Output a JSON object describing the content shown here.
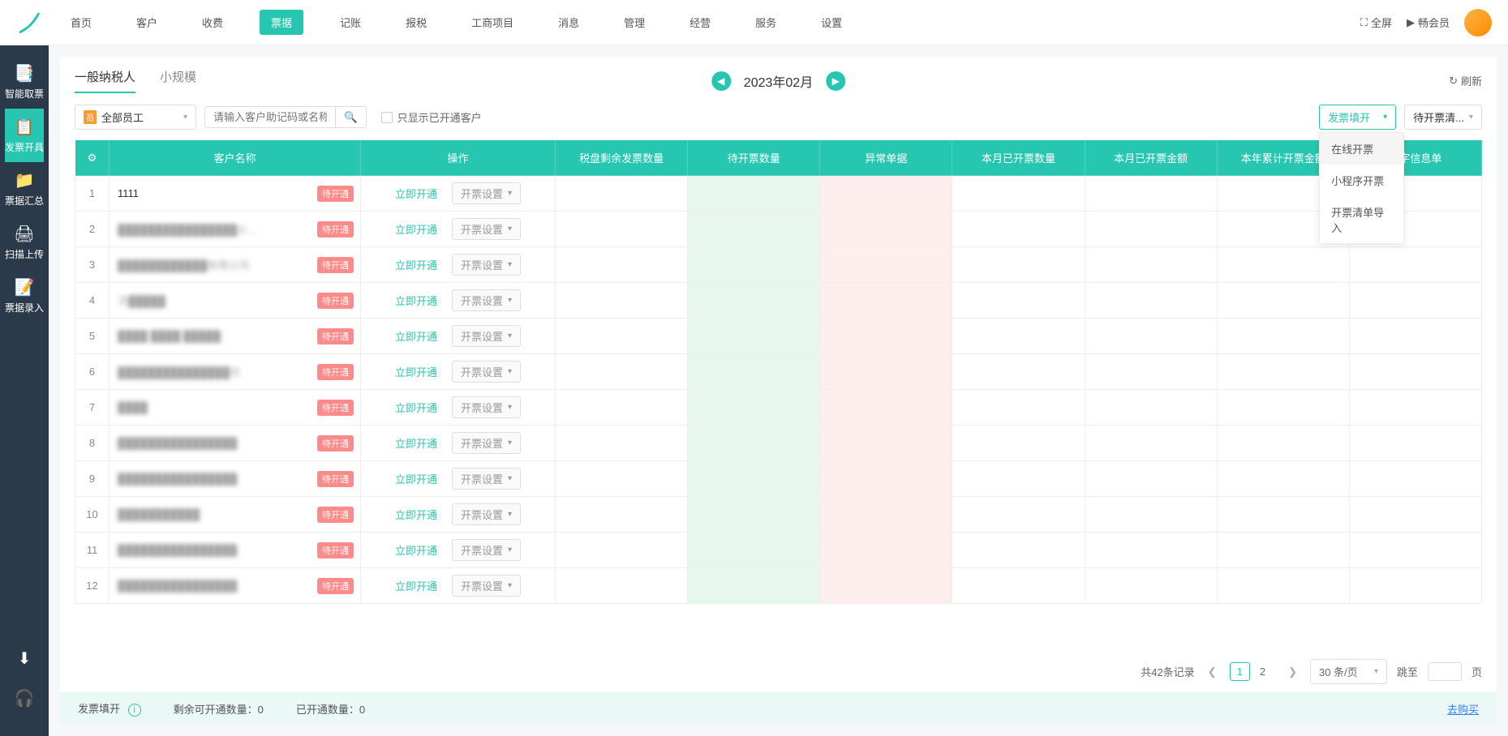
{
  "topNav": {
    "items": [
      "首页",
      "客户",
      "收费",
      "票据",
      "记账",
      "报税",
      "工商项目",
      "消息",
      "管理",
      "经营",
      "服务",
      "设置"
    ],
    "activeIndex": 3,
    "fullscreen": "全屏",
    "member": "畅会员"
  },
  "sidebar": {
    "items": [
      {
        "label": "智能取票",
        "icon": "📑"
      },
      {
        "label": "发票开具",
        "icon": "📋"
      },
      {
        "label": "票据汇总",
        "icon": "📁"
      },
      {
        "label": "扫描上传",
        "icon": "🖨"
      },
      {
        "label": "票据录入",
        "icon": "📝"
      }
    ],
    "activeIndex": 1,
    "bottom": [
      {
        "icon": "⬇"
      },
      {
        "icon": "🎧"
      }
    ]
  },
  "tabs": {
    "items": [
      "一般纳税人",
      "小规模"
    ],
    "activeIndex": 0,
    "date": "2023年02月",
    "refresh": "刷新"
  },
  "filter": {
    "employeeSelect": "全部员工",
    "searchPlaceholder": "请输入客户助记码或名称",
    "onlyOpened": "只显示已开通客户",
    "invoiceFillLabel": "发票填开",
    "pendingListLabel": "待开票清...",
    "dropdownItems": [
      "在线开票",
      "小程序开票",
      "开票清单导入"
    ]
  },
  "table": {
    "headers": [
      "客户名称",
      "操作",
      "税盘剩余发票数量",
      "待开票数量",
      "异常单据",
      "本月已开票数量",
      "本月已开票金额",
      "本年累计开票金额",
      "红字信息单"
    ],
    "actionLink": "立即开通",
    "actionDropdown": "开票设置",
    "pendingTag": "待开通",
    "pendingTagShort": "开通",
    "rows": [
      {
        "idx": 1,
        "name": "1111",
        "blurred": false
      },
      {
        "idx": 2,
        "name": "████████████████火...",
        "blurred": true
      },
      {
        "idx": 3,
        "name": "████████████有限公司",
        "blurred": true
      },
      {
        "idx": 4,
        "name": "济█████",
        "blurred": true
      },
      {
        "idx": 5,
        "name": "████ ████ █████",
        "blurred": true
      },
      {
        "idx": 6,
        "name": "███████████████司",
        "blurred": true
      },
      {
        "idx": 7,
        "name": "████",
        "blurred": true
      },
      {
        "idx": 8,
        "name": "████████████████",
        "blurred": true
      },
      {
        "idx": 9,
        "name": "████████████████",
        "blurred": true
      },
      {
        "idx": 10,
        "name": "███████████",
        "blurred": true
      },
      {
        "idx": 11,
        "name": "████████████████",
        "blurred": true
      },
      {
        "idx": 12,
        "name": "████████████████",
        "blurred": true
      }
    ]
  },
  "pagination": {
    "totalText": "共42条记录",
    "pages": [
      "1",
      "2"
    ],
    "activePage": 0,
    "perPage": "30 条/页",
    "jumpLabel": "跳至",
    "pageSuffix": "页"
  },
  "footer": {
    "title": "发票填开",
    "remaining": "剩余可开通数量：0",
    "opened": "已开通数量：0",
    "buyLink": "去购买"
  }
}
